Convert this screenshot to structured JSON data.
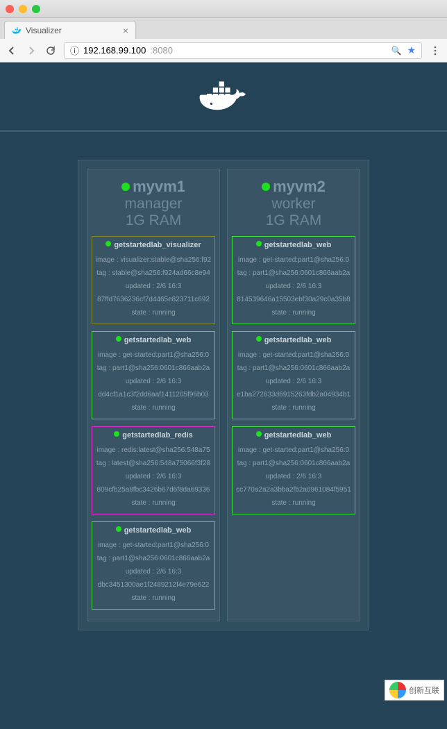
{
  "chrome": {
    "traffic": {
      "close": "#ff5f57",
      "min": "#febc2e",
      "max": "#28c840"
    },
    "tab_title": "Visualizer",
    "address_host": "192.168.99.100",
    "address_port": ":8080",
    "zoom_icon": "🔍",
    "star_icon": "★",
    "info_icon": "ⓘ"
  },
  "page": {
    "bg_color": "#254356",
    "header_border": "#3a5a6e"
  },
  "columns": [
    {
      "name": "myvm1",
      "role": "manager",
      "ram": "1G RAM",
      "cards": [
        {
          "title": "getstartedlab_visualizer",
          "border": "#8a8a2a",
          "lines": [
            "image : visualizer:stable@sha256:f92",
            "tag : stable@sha256:f924ad66c8e94",
            "updated : 2/6 16:3",
            "87ffd7636236cf7d4465e823711c692",
            "state : running"
          ]
        },
        {
          "title": "getstartedlab_web",
          "border": "#3fe03f",
          "lines": [
            "image : get-started:part1@sha256:0",
            "tag : part1@sha256:0601c866aab2a",
            "updated : 2/6 16:3",
            "dd4cf1a1c3f2dd6aaf1411205f96b03",
            "state : running"
          ]
        },
        {
          "title": "getstartedlab_redis",
          "border": "#e02fd0",
          "lines": [
            "image : redis:latest@sha256:548a75",
            "tag : latest@sha256:548a75066f3f28",
            "updated : 2/6 16:3",
            "809cfb25a8fbc3426b67d6f8da69336",
            "state : running"
          ]
        },
        {
          "title": "getstartedlab_web",
          "border": "#3fe03f",
          "lines": [
            "image : get-started:part1@sha256:0",
            "tag : part1@sha256:0601c866aab2a",
            "updated : 2/6 16:3",
            "dbc3451300ae1f2489212f4e79e622",
            "state : running"
          ]
        }
      ]
    },
    {
      "name": "myvm2",
      "role": "worker",
      "ram": "1G RAM",
      "cards": [
        {
          "title": "getstartedlab_web",
          "border": "#3fe03f",
          "lines": [
            "image : get-started:part1@sha256:0",
            "tag : part1@sha256:0601c866aab2a",
            "updated : 2/6 16:3",
            "814539646a15503ebf30a29c0a35b8",
            "state : running"
          ]
        },
        {
          "title": "getstartedlab_web",
          "border": "#3fe03f",
          "lines": [
            "image : get-started:part1@sha256:0",
            "tag : part1@sha256:0601c866aab2a",
            "updated : 2/6 16:3",
            "e1ba272633d6915263fdb2a04934b1",
            "state : running"
          ]
        },
        {
          "title": "getstartedlab_web",
          "border": "#3fe03f",
          "lines": [
            "image : get-started:part1@sha256:0",
            "tag : part1@sha256:0601c866aab2a",
            "updated : 2/6 16:3",
            "cc770a2a2a3bba2fb2a0961084f5951",
            "state : running"
          ]
        }
      ]
    }
  ],
  "watermark": "创新互联"
}
